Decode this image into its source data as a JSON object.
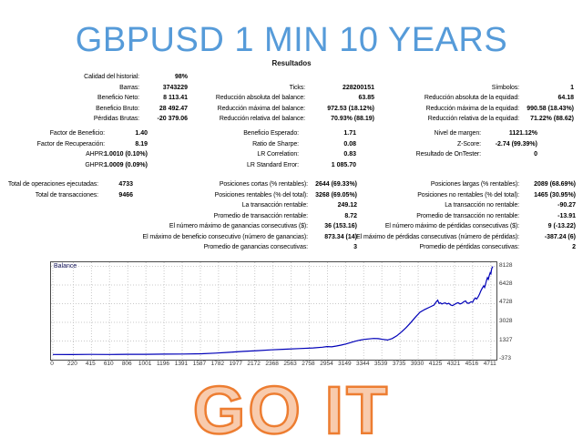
{
  "title": "GBPUSD 1 MIN 10 YEARS",
  "results_heading": "Resultados",
  "watermark": "GO IT",
  "colors": {
    "title_blue": "#569BD9",
    "watermark_fill": "#F8CBAD",
    "watermark_stroke": "#ED7D31",
    "balance_line": "#0000B8"
  },
  "stats": {
    "b1c1": [
      {
        "label": "Calidad del historial:",
        "value": "98%"
      },
      {
        "label": "Barras:",
        "value": "3743229"
      },
      {
        "label": "Beneficio Neto:",
        "value": "8 113.41"
      },
      {
        "label": "Beneficio Bruto:",
        "value": "28 492.47"
      },
      {
        "label": "Pérdidas Brutas:",
        "value": "-20 379.06"
      }
    ],
    "b1c2": [
      {
        "label": "Ticks:",
        "value": "228200151"
      },
      {
        "label": "Reducción absoluta del balance:",
        "value": "63.85"
      },
      {
        "label": "Reducción máxima del balance:",
        "value": "972.53 (18.12%)"
      },
      {
        "label": "Reducción relativa del balance:",
        "value": "70.93% (88.19)"
      }
    ],
    "b1c3": [
      {
        "label": "Símbolos:",
        "value": "1"
      },
      {
        "label": "Reducción absoluta de la equidad:",
        "value": "64.18"
      },
      {
        "label": "Reducción máxima de la equidad:",
        "value": "990.58 (18.43%)"
      },
      {
        "label": "Reducción relativa de la equidad:",
        "value": "71.22% (88.62)"
      }
    ],
    "b2c1": [
      {
        "label": "Factor de Beneficio:",
        "value": "1.40"
      },
      {
        "label": "Factor de Recuperación:",
        "value": "8.19"
      },
      {
        "label": "AHPR:",
        "value": "1.0010 (0.10%)"
      },
      {
        "label": "GHPR:",
        "value": "1.0009 (0.09%)"
      }
    ],
    "b2c2": [
      {
        "label": "Beneficio Esperado:",
        "value": "1.71"
      },
      {
        "label": "Ratio de Sharpe:",
        "value": "0.08"
      },
      {
        "label": "LR Correlation:",
        "value": "0.83"
      },
      {
        "label": "LR Standard Error:",
        "value": "1 085.70"
      }
    ],
    "b2c3": [
      {
        "label": "Nivel de margen:",
        "value": "1121.12%"
      },
      {
        "label": "Z-Score:",
        "value": "-2.74 (99.39%)"
      },
      {
        "label": "Resultado de OnTester:",
        "value": "0"
      }
    ],
    "b3c1": [
      {
        "label": "Total de operaciones ejecutadas:",
        "value": "4733"
      },
      {
        "label": "Total de transacciones:",
        "value": "9466"
      }
    ],
    "b3c2": [
      {
        "label": "Posiciones cortas (% rentables):",
        "value": "2644 (69.33%)"
      },
      {
        "label": "Posiciones rentables (% del total):",
        "value": "3268 (69.05%)"
      },
      {
        "label": "La transacción rentable:",
        "value": "249.12"
      },
      {
        "label": "Promedio de transacción rentable:",
        "value": "8.72"
      },
      {
        "label": "El número máximo de ganancias consecutivas ($):",
        "value": "36 (153.16)"
      },
      {
        "label": "El máximo de beneficio consecutivo (número de ganancias):",
        "value": "873.34 (14)"
      },
      {
        "label": "Promedio de ganancias consecutivas:",
        "value": "3"
      }
    ],
    "b3c3": [
      {
        "label": "Posiciones largas (% rentables):",
        "value": "2089 (68.69%)"
      },
      {
        "label": "Posiciones no rentables (% del total):",
        "value": "1465 (30.95%)"
      },
      {
        "label": "La transacción no rentable:",
        "value": "-90.27"
      },
      {
        "label": "Promedio de transacción no rentable:",
        "value": "-13.91"
      },
      {
        "label": "El número máximo de pérdidas consecutivas ($):",
        "value": "9 (-13.22)"
      },
      {
        "label": "El máximo de pérdidas consecutivas (número de pérdidas):",
        "value": "-387.24 (6)"
      },
      {
        "label": "Promedio de pérdidas consecutivas:",
        "value": "2"
      }
    ]
  },
  "chart_data": {
    "type": "line",
    "title": "",
    "legend": "Balance",
    "xlabel": "",
    "ylabel": "",
    "grid": true,
    "legend_position": "top-left",
    "xlim": [
      0,
      4733
    ],
    "ylim": [
      -373,
      8128
    ],
    "xticks": [
      0,
      220,
      415,
      610,
      806,
      1001,
      1196,
      1391,
      1587,
      1782,
      1977,
      2172,
      2368,
      2563,
      2758,
      2954,
      3149,
      3344,
      3539,
      3735,
      3930,
      4125,
      4321,
      4516,
      4711
    ],
    "yticks": [
      -373,
      1327,
      3028,
      4728,
      6428,
      8128
    ],
    "line_color": "#0000B8",
    "series": [
      {
        "name": "Balance",
        "points": [
          [
            0,
            100
          ],
          [
            200,
            90
          ],
          [
            400,
            110
          ],
          [
            600,
            100
          ],
          [
            800,
            120
          ],
          [
            1000,
            115
          ],
          [
            1200,
            130
          ],
          [
            1400,
            140
          ],
          [
            1600,
            170
          ],
          [
            1750,
            220
          ],
          [
            1900,
            300
          ],
          [
            2050,
            380
          ],
          [
            2200,
            450
          ],
          [
            2350,
            520
          ],
          [
            2500,
            580
          ],
          [
            2650,
            640
          ],
          [
            2800,
            700
          ],
          [
            2900,
            760
          ],
          [
            2950,
            820
          ],
          [
            3000,
            800
          ],
          [
            3050,
            870
          ],
          [
            3100,
            950
          ],
          [
            3150,
            1050
          ],
          [
            3200,
            1180
          ],
          [
            3250,
            1300
          ],
          [
            3300,
            1400
          ],
          [
            3350,
            1480
          ],
          [
            3400,
            1520
          ],
          [
            3450,
            1560
          ],
          [
            3500,
            1540
          ],
          [
            3550,
            1480
          ],
          [
            3600,
            1420
          ],
          [
            3650,
            1550
          ],
          [
            3700,
            1800
          ],
          [
            3750,
            2150
          ],
          [
            3800,
            2550
          ],
          [
            3850,
            3000
          ],
          [
            3900,
            3500
          ],
          [
            3950,
            3950
          ],
          [
            4000,
            4200
          ],
          [
            4050,
            4400
          ],
          [
            4100,
            4600
          ],
          [
            4125,
            4900
          ],
          [
            4140,
            5050
          ],
          [
            4155,
            4750
          ],
          [
            4170,
            4800
          ],
          [
            4185,
            4700
          ],
          [
            4200,
            4750
          ],
          [
            4220,
            4800
          ],
          [
            4240,
            4700
          ],
          [
            4260,
            4760
          ],
          [
            4280,
            4600
          ],
          [
            4300,
            4550
          ],
          [
            4320,
            4650
          ],
          [
            4340,
            4750
          ],
          [
            4360,
            4820
          ],
          [
            4380,
            4700
          ],
          [
            4400,
            4760
          ],
          [
            4420,
            4900
          ],
          [
            4440,
            4980
          ],
          [
            4455,
            4800
          ],
          [
            4470,
            4750
          ],
          [
            4485,
            4820
          ],
          [
            4500,
            4900
          ],
          [
            4515,
            4850
          ],
          [
            4530,
            5100
          ],
          [
            4545,
            5250
          ],
          [
            4560,
            5150
          ],
          [
            4575,
            5350
          ],
          [
            4590,
            5600
          ],
          [
            4605,
            5900
          ],
          [
            4620,
            6150
          ],
          [
            4635,
            6350
          ],
          [
            4645,
            6200
          ],
          [
            4655,
            6500
          ],
          [
            4665,
            6850
          ],
          [
            4675,
            7100
          ],
          [
            4685,
            6950
          ],
          [
            4695,
            7300
          ],
          [
            4705,
            7550
          ],
          [
            4712,
            7450
          ],
          [
            4718,
            7800
          ],
          [
            4725,
            8000
          ],
          [
            4733,
            8113
          ]
        ]
      }
    ]
  }
}
